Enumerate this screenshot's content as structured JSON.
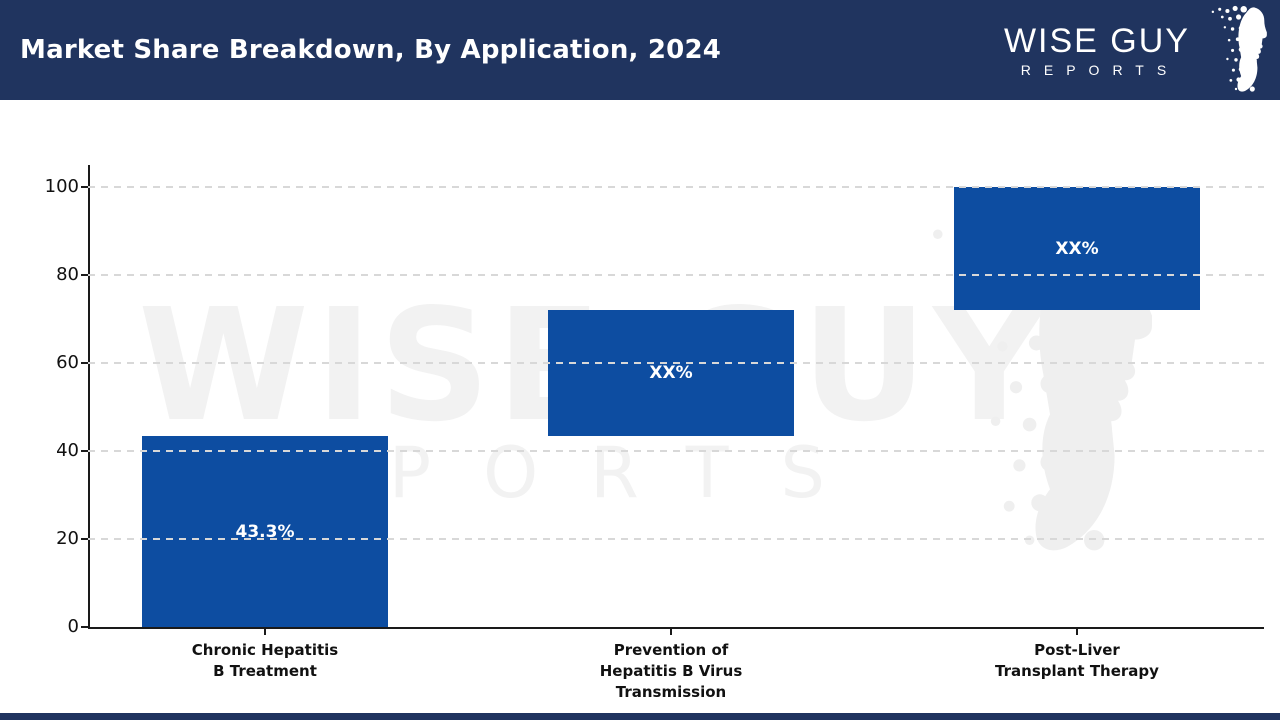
{
  "header": {
    "title": "Market Share Breakdown, By Application, 2024",
    "logo_line1": "WISE GUY",
    "logo_line2": "REPORTS",
    "bg_color": "#20345f"
  },
  "watermark": {
    "line1": "WISE GUY",
    "line2": "REPORTS"
  },
  "chart_data": {
    "type": "bar",
    "subtype": "waterfall",
    "title": "Market Share Breakdown, By Application, 2024",
    "categories": [
      "Chronic Hepatitis\nB Treatment",
      "Prevention of\nHepatitis B Virus\nTransmission",
      "Post-Liver\nTransplant Therapy"
    ],
    "segments": [
      {
        "category": "Chronic Hepatitis B Treatment",
        "start": 0,
        "end": 43.3,
        "label": "43.3%"
      },
      {
        "category": "Prevention of Hepatitis B Virus Transmission",
        "start": 43.3,
        "end": 72,
        "label": "XX%"
      },
      {
        "category": "Post-Liver Transplant Therapy",
        "start": 72,
        "end": 100,
        "label": "XX%"
      }
    ],
    "yticks": [
      0,
      20,
      40,
      60,
      80,
      100
    ],
    "ylim": [
      0,
      105
    ],
    "xlabel": "",
    "ylabel": "",
    "grid": "horizontal-dashed",
    "legend": "none",
    "bar_color": "#0d4da1",
    "bar_label_color": "#ffffff",
    "axis_color": "#1a1a1a",
    "gridline_color": "#d8d8d8"
  },
  "footer": {
    "bg_color": "#20345f"
  }
}
